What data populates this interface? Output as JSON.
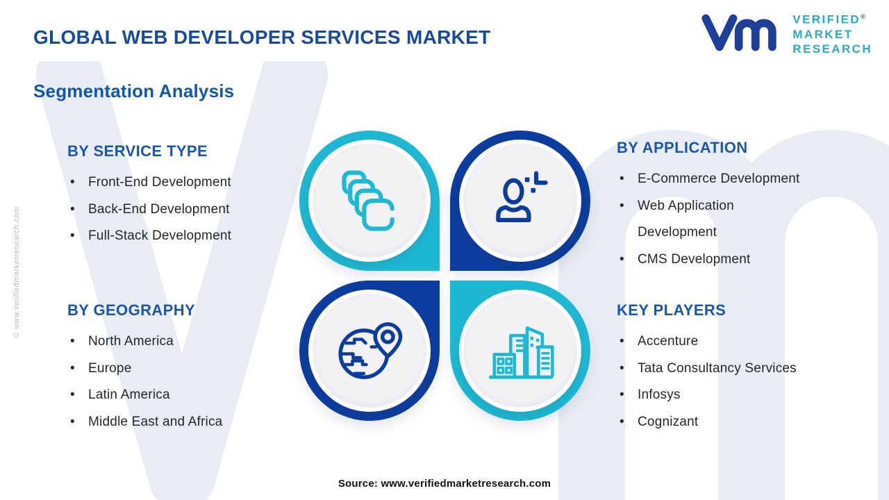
{
  "page": {
    "title": "GLOBAL WEB DEVELOPER SERVICES MARKET",
    "subtitle": "Segmentation Analysis",
    "source": "Source: www.verifiedmarketresearch.com",
    "side_watermark": "© www.verifiedmarketresearch.com"
  },
  "logo": {
    "monogram": "vm",
    "line1": "VERIFIED",
    "line2": "MARKET",
    "line3": "RESEARCH",
    "registered_mark": "®"
  },
  "sections": [
    {
      "id": "service-type",
      "heading": "BY SERVICE TYPE",
      "items": [
        "Front-End Development",
        "Back-End Development",
        "Full-Stack Development"
      ]
    },
    {
      "id": "application",
      "heading": "BY APPLICATION",
      "items": [
        "E-Commerce Development",
        "Web Application\nDevelopment",
        "CMS Development"
      ]
    },
    {
      "id": "geography",
      "heading": "BY GEOGRAPHY",
      "items": [
        "North America",
        "Europe",
        "Latin America",
        "Middle East and Africa"
      ]
    },
    {
      "id": "key-players",
      "heading": "KEY PLAYERS",
      "items": [
        "Accenture",
        "Tata Consultancy Services",
        "Infosys",
        "Cognizant"
      ]
    }
  ],
  "icons": {
    "top_left": "stacked-code-blocks-icon",
    "top_right": "developer-person-icon",
    "bottom_left": "globe-location-pin-icon",
    "bottom_right": "city-buildings-icon"
  },
  "colors": {
    "teal": "#1eb8d2",
    "dark_blue": "#0c3c9e",
    "title_blue": "#1a4a9e",
    "heading_blue": "#1d56a9",
    "logo_teal": "#2aacbe",
    "watermark_gray": "#e8ecf3",
    "text_dark": "#23262c"
  }
}
